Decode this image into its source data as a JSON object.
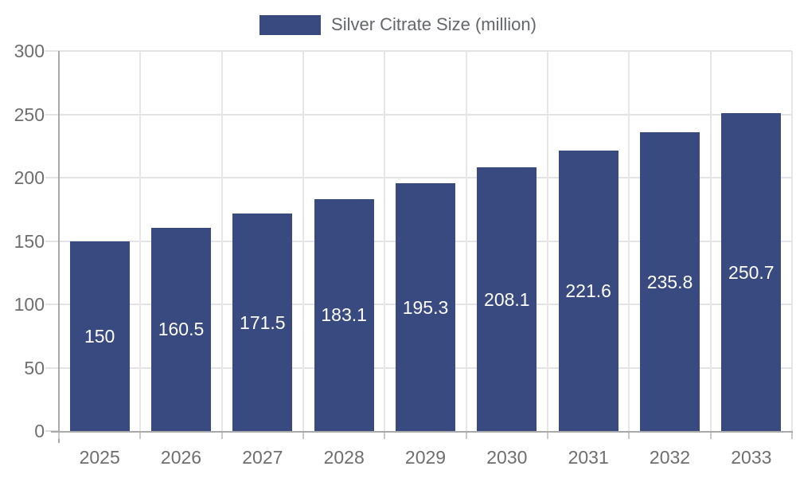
{
  "legend": {
    "label": "Silver Citrate Size (million)",
    "swatch_color": "#394A80"
  },
  "chart_data": {
    "type": "bar",
    "title": "Silver Citrate Size (million)",
    "categories": [
      "2025",
      "2026",
      "2027",
      "2028",
      "2029",
      "2030",
      "2031",
      "2032",
      "2033"
    ],
    "values": [
      150,
      160.5,
      171.5,
      183.1,
      195.3,
      208.1,
      221.6,
      235.8,
      250.7
    ],
    "value_labels": [
      "150",
      "160.5",
      "171.5",
      "183.1",
      "195.3",
      "208.1",
      "221.6",
      "235.8",
      "250.7"
    ],
    "xlabel": "",
    "ylabel": "",
    "ylim": [
      0,
      300
    ],
    "yticks": [
      0,
      50,
      100,
      150,
      200,
      250,
      300
    ],
    "grid": true,
    "legend_position": "top-center",
    "bar_color": "#394A80",
    "value_label_color": "#FFFFFF",
    "axis_tick_label_color": "#6E6E6E",
    "legend_text_color": "#63666B"
  }
}
